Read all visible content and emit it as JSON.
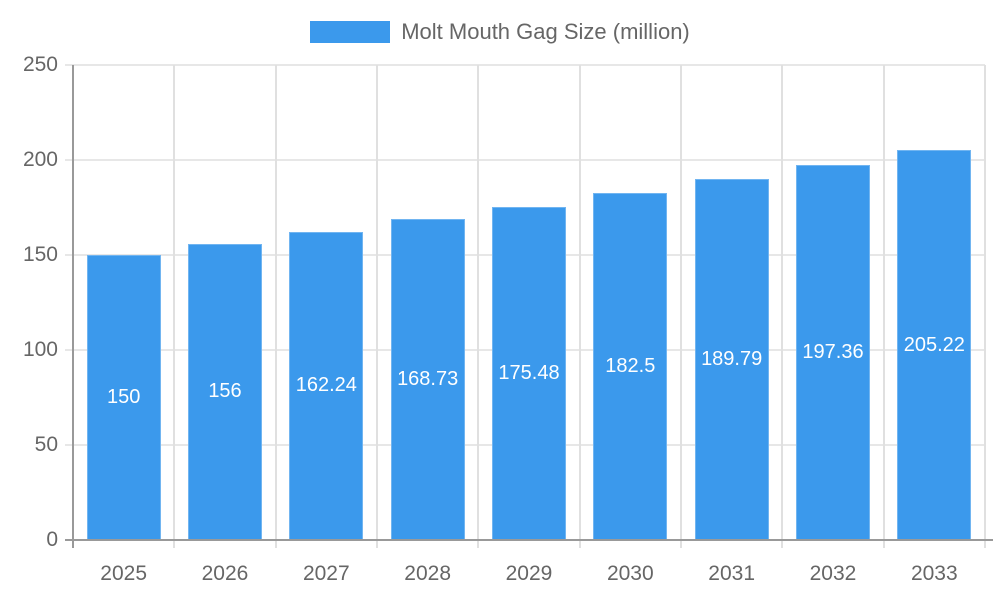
{
  "chart_data": {
    "type": "bar",
    "title": "Molt Mouth Gag Size (million)",
    "categories": [
      "2025",
      "2026",
      "2027",
      "2028",
      "2029",
      "2030",
      "2031",
      "2032",
      "2033"
    ],
    "values": [
      150,
      156,
      162.24,
      168.73,
      175.48,
      182.5,
      189.79,
      197.36,
      205.22
    ],
    "value_labels": [
      "150",
      "156",
      "162.24",
      "168.73",
      "175.48",
      "182.5",
      "189.79",
      "197.36",
      "205.22"
    ],
    "xlabel": "",
    "ylabel": "",
    "ylim": [
      0,
      250
    ],
    "ytick_step": 50,
    "ytick_labels": [
      "0",
      "50",
      "100",
      "150",
      "200",
      "250"
    ],
    "grid": true,
    "legend_position": "top-center",
    "value_label_position": "inside-center",
    "colors": {
      "bar": "#3B99EC",
      "bar_value_label": "#ffffff",
      "axis_line": "#999999",
      "grid_h": "#e7e7e7",
      "grid_v": "#e0e0e0",
      "axis_text": "#666666",
      "legend_text": "#666666",
      "background": "#ffffff"
    }
  },
  "legend": {
    "items": [
      {
        "label": "Molt Mouth Gag Size (million)",
        "color": "#3B99EC"
      }
    ]
  }
}
